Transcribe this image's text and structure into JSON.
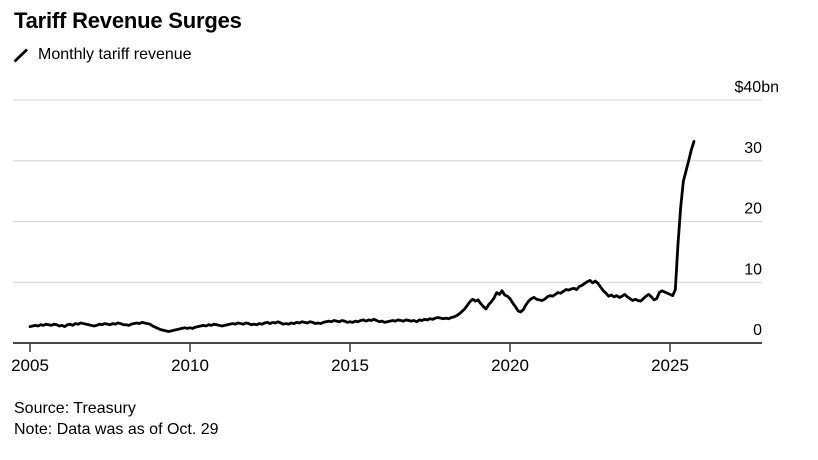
{
  "header": {
    "title": "Tariff Revenue Surges"
  },
  "legend": {
    "marker": "diagonal-line-sample",
    "label": "Monthly tariff revenue"
  },
  "footer": {
    "source": "Source: Treasury",
    "note": "Note: Data was as of Oct. 29"
  },
  "colors": {
    "background": "#ffffff",
    "line": "#000000",
    "grid": "#d6d6d6",
    "axis": "#2b2b2b",
    "text": "#000000"
  },
  "chart_data": {
    "type": "line",
    "title": "Tariff Revenue Surges",
    "series_name": "Monthly tariff revenue",
    "unit": "$bn",
    "frequency": "monthly",
    "start": "2005-01",
    "end": "2025-10",
    "x_ticks": [
      2005,
      2010,
      2015,
      2020,
      2025
    ],
    "y_ticks": [
      0,
      10,
      20,
      30
    ],
    "y_axis_top_label": "$40bn",
    "ylim": [
      0,
      40
    ],
    "grid": "horizontal",
    "legend_position": "top-left",
    "values": [
      2.7,
      2.8,
      2.9,
      2.8,
      3.0,
      2.9,
      3.1,
      3.0,
      2.9,
      3.1,
      3.0,
      2.8,
      2.9,
      2.7,
      3.0,
      3.1,
      2.9,
      3.2,
      3.1,
      3.3,
      3.2,
      3.1,
      3.0,
      2.9,
      2.8,
      2.9,
      3.1,
      3.0,
      3.2,
      3.1,
      3.0,
      3.2,
      3.1,
      3.3,
      3.2,
      3.0,
      3.0,
      2.9,
      3.1,
      3.2,
      3.3,
      3.2,
      3.4,
      3.3,
      3.2,
      3.1,
      2.8,
      2.6,
      2.4,
      2.2,
      2.1,
      2.0,
      1.9,
      2.0,
      2.1,
      2.2,
      2.3,
      2.4,
      2.5,
      2.4,
      2.5,
      2.4,
      2.6,
      2.7,
      2.8,
      2.9,
      2.8,
      3.0,
      2.9,
      3.1,
      3.0,
      2.9,
      2.8,
      2.9,
      3.0,
      3.1,
      3.2,
      3.1,
      3.3,
      3.2,
      3.1,
      3.3,
      3.2,
      3.0,
      3.1,
      3.0,
      3.2,
      3.1,
      3.3,
      3.4,
      3.2,
      3.4,
      3.3,
      3.5,
      3.3,
      3.1,
      3.2,
      3.1,
      3.3,
      3.2,
      3.4,
      3.3,
      3.5,
      3.4,
      3.3,
      3.5,
      3.4,
      3.2,
      3.3,
      3.2,
      3.4,
      3.5,
      3.6,
      3.5,
      3.7,
      3.6,
      3.5,
      3.7,
      3.6,
      3.4,
      3.5,
      3.4,
      3.6,
      3.5,
      3.7,
      3.8,
      3.6,
      3.8,
      3.7,
      3.9,
      3.7,
      3.5,
      3.6,
      3.4,
      3.5,
      3.6,
      3.7,
      3.6,
      3.8,
      3.7,
      3.6,
      3.8,
      3.7,
      3.6,
      3.7,
      3.5,
      3.8,
      3.7,
      3.9,
      3.8,
      4.0,
      3.9,
      4.1,
      4.2,
      4.1,
      4.0,
      4.1,
      4.0,
      4.2,
      4.3,
      4.5,
      4.8,
      5.2,
      5.6,
      6.2,
      6.8,
      7.2,
      6.9,
      7.1,
      6.5,
      6.0,
      5.6,
      6.3,
      6.8,
      7.4,
      8.3,
      8.0,
      8.6,
      7.9,
      7.7,
      7.3,
      6.6,
      6.0,
      5.3,
      5.1,
      5.5,
      6.3,
      6.9,
      7.3,
      7.5,
      7.2,
      7.1,
      7.0,
      7.2,
      7.6,
      7.8,
      7.7,
      8.0,
      8.3,
      8.2,
      8.5,
      8.8,
      8.7,
      8.9,
      9.0,
      8.8,
      9.3,
      9.5,
      9.8,
      10.1,
      10.3,
      9.9,
      10.2,
      9.8,
      9.2,
      8.6,
      8.2,
      7.7,
      7.9,
      7.6,
      7.8,
      7.5,
      7.7,
      8.0,
      7.6,
      7.3,
      7.0,
      7.2,
      7.0,
      6.9,
      7.3,
      7.7,
      8.0,
      7.6,
      7.1,
      7.3,
      8.3,
      8.6,
      8.4,
      8.2,
      8.0,
      7.8,
      8.8,
      16.3,
      22.3,
      26.6,
      28.3,
      30.0,
      31.8,
      33.2
    ]
  }
}
